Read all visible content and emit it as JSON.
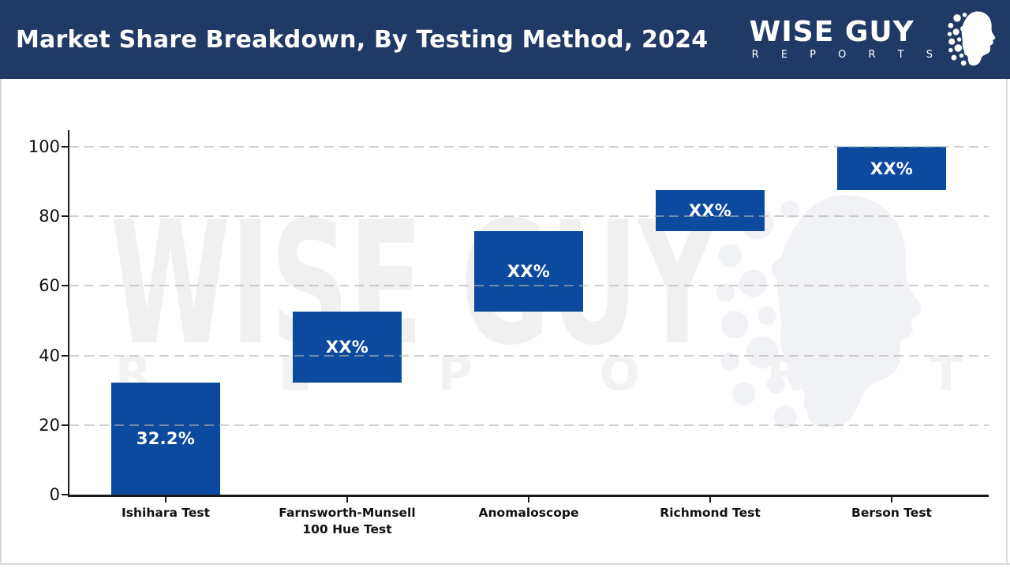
{
  "header": {
    "title": "Market Share Breakdown, By Testing Method, 2024",
    "logo": {
      "name": "WISE GUY",
      "sub": "R E P O R T S"
    }
  },
  "watermark": {
    "line1": "WISE GUY",
    "line2": "R E P O R T S"
  },
  "colors": {
    "header_bg": "#203a66",
    "bar": "#0c4aa0",
    "bar_label": "#ffffff",
    "grid": "#d9d9d9",
    "axis": "#1a1a1a",
    "watermark": "#f0f0f1"
  },
  "chart_data": {
    "type": "bar",
    "subtype": "waterfall",
    "title": "Market Share Breakdown, By Testing Method, 2024",
    "xlabel": "",
    "ylabel": "",
    "ylim": [
      0,
      105
    ],
    "yticks": [
      0,
      20,
      40,
      60,
      80,
      100
    ],
    "grid": "horizontal-dashed",
    "legend": "none",
    "categories": [
      [
        "Ishihara Test"
      ],
      [
        "Farnsworth-Munsell",
        "100 Hue Test"
      ],
      [
        "Anomaloscope"
      ],
      [
        "Richmond Test"
      ],
      [
        "Berson Test"
      ]
    ],
    "segments": [
      {
        "category": "Ishihara Test",
        "start": 0,
        "end": 32.2,
        "label": "32.2%"
      },
      {
        "category": "Farnsworth-Munsell 100 Hue Test",
        "start": 32.2,
        "end": 52.5,
        "label": "XX%"
      },
      {
        "category": "Anomaloscope",
        "start": 52.5,
        "end": 75.7,
        "label": "XX%"
      },
      {
        "category": "Richmond Test",
        "start": 75.7,
        "end": 87.5,
        "label": "XX%"
      },
      {
        "category": "Berson Test",
        "start": 87.5,
        "end": 100,
        "label": "XX%"
      }
    ]
  }
}
